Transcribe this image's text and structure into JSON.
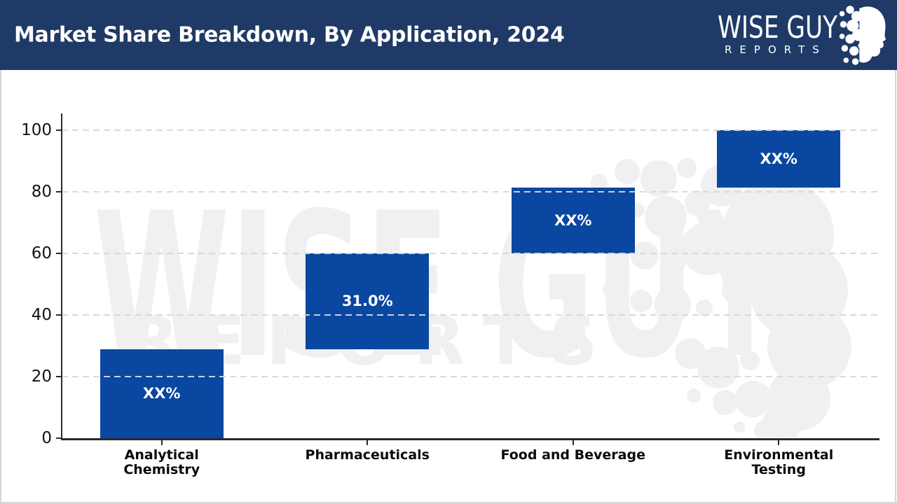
{
  "header": {
    "title": "Market Share Breakdown, By Application, 2024",
    "brand_line1": "WISE GUY",
    "brand_line2": "REPORTS"
  },
  "watermark": {
    "line1": "WISE GUY",
    "line2": "REPORTS"
  },
  "chart_data": {
    "type": "bar",
    "subtype": "waterfall",
    "title": "Market Share Breakdown, By Application, 2024",
    "xlabel": "",
    "ylabel": "",
    "ylim": [
      0,
      100
    ],
    "yticks": [
      0,
      20,
      40,
      60,
      80,
      100
    ],
    "grid": "horizontal dashed, drawn over bars",
    "legend": "none",
    "categories": [
      "Analytical Chemistry",
      "Pharmaceuticals",
      "Food and Beverage",
      "Environmental Testing"
    ],
    "category_lines": [
      [
        "Analytical",
        "Chemistry"
      ],
      [
        "Pharmaceuticals"
      ],
      [
        "Food and Beverage"
      ],
      [
        "Environmental",
        "Testing"
      ]
    ],
    "bar_labels": [
      "XX%",
      "31.0%",
      "XX%",
      "XX%"
    ],
    "values": [
      29,
      31,
      21.5,
      18.5
    ],
    "segments": [
      {
        "category": "Analytical Chemistry",
        "label": "XX%",
        "start": 0,
        "end": 29
      },
      {
        "category": "Pharmaceuticals",
        "label": "31.0%",
        "start": 29,
        "end": 60
      },
      {
        "category": "Food and Beverage",
        "label": "XX%",
        "start": 60,
        "end": 81.5
      },
      {
        "category": "Environmental Testing",
        "label": "XX%",
        "start": 81.5,
        "end": 100
      }
    ]
  },
  "colors": {
    "header_bg": "#1f3a66",
    "bar": "#0a47a0",
    "bar_label": "#ffffff",
    "watermark": "#f0f0f2",
    "axis": "#2a2a2a",
    "grid": "#d6d8dc",
    "border": "#d6d6d6",
    "tick_text": "#141414"
  }
}
